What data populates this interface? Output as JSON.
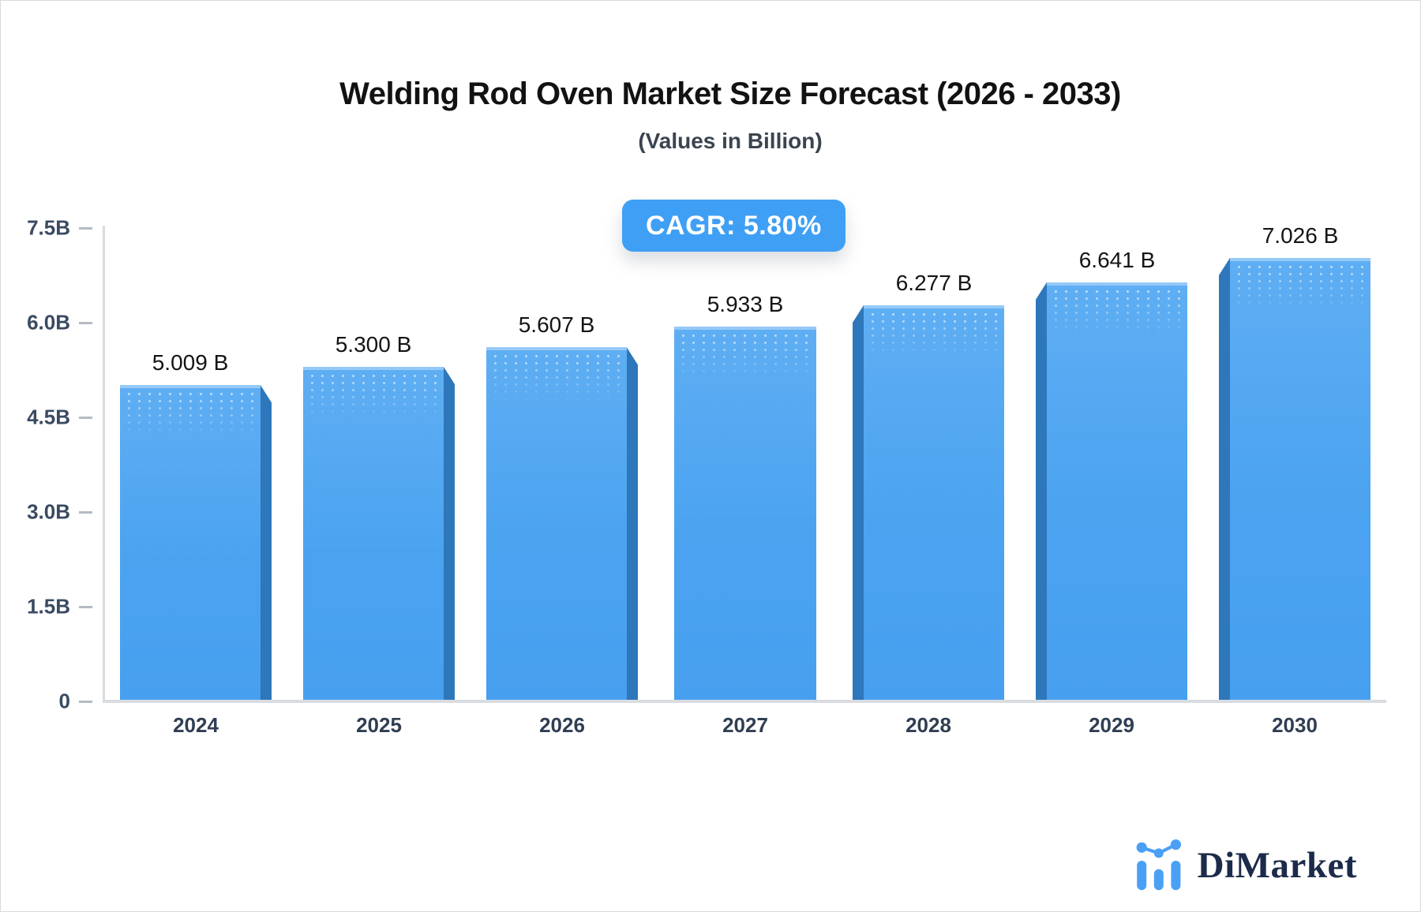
{
  "header": {
    "title": "Welding Rod Oven Market Size Forecast (2026 - 2033)",
    "subtitle": "(Values in Billion)",
    "cagr_label": "CAGR: 5.80%"
  },
  "chart_data": {
    "type": "bar",
    "title": "Welding Rod Oven Market Size Forecast (2026 - 2033)",
    "subtitle": "(Values in Billion)",
    "categories": [
      "2024",
      "2025",
      "2026",
      "2027",
      "2028",
      "2029",
      "2030"
    ],
    "values": [
      5.009,
      5.3,
      5.607,
      5.933,
      6.277,
      6.641,
      7.026
    ],
    "value_labels": [
      "5.009 B",
      "5.300 B",
      "5.607 B",
      "5.933 B",
      "6.277 B",
      "6.641 B",
      "7.026 B"
    ],
    "cagr": "5.80%",
    "xlabel": "",
    "ylabel": "",
    "ylim": [
      0,
      7.5
    ],
    "y_ticks": [
      {
        "label": "0",
        "value": 0
      },
      {
        "label": "1.5B",
        "value": 1.5
      },
      {
        "label": "3.0B",
        "value": 3
      },
      {
        "label": "4.5B",
        "value": 4.5
      },
      {
        "label": "6.0B",
        "value": 6
      },
      {
        "label": "7.5B",
        "value": 7.5
      }
    ],
    "grid": false,
    "legend": "none"
  },
  "footer": {
    "brand": "DiMarket"
  },
  "colors": {
    "accent": "#3f9ff4",
    "bar_face_top": "#5faef3",
    "bar_face_mid": "#4ba3f0",
    "bar_face_bottom": "#47a0ef",
    "bar_side": "#2d77ba",
    "axis_line": "#d8dce1",
    "tick_text": "#3a4a61",
    "brand_text": "#1c2b4a"
  }
}
